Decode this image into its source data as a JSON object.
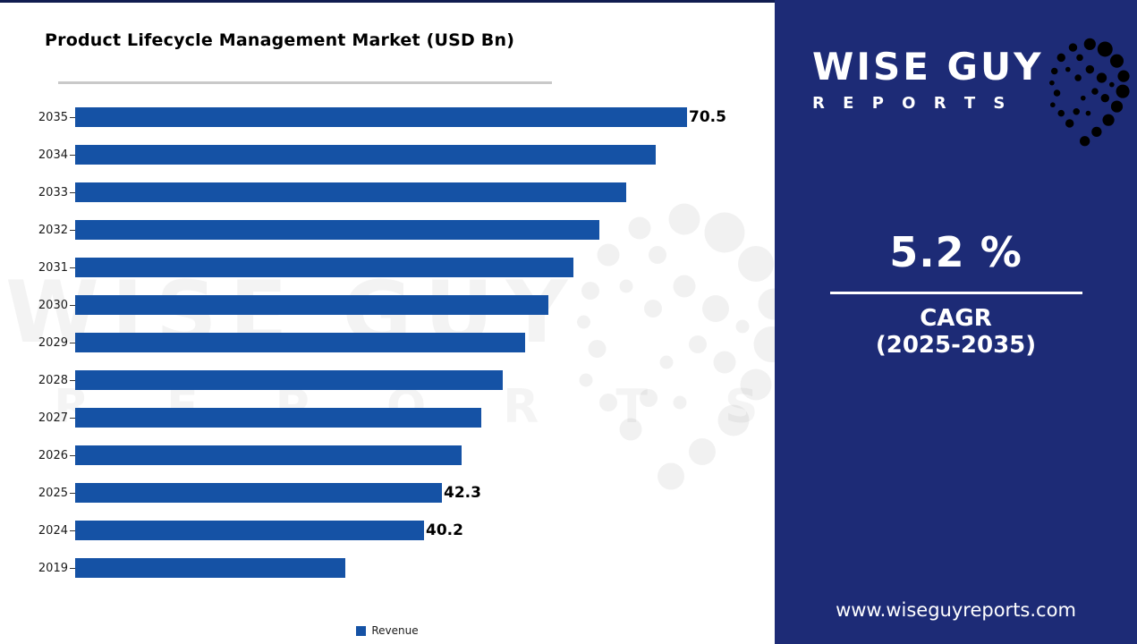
{
  "title": "Product Lifecycle Management Market (USD Bn)",
  "legend": {
    "label": "Revenue"
  },
  "chart_data": {
    "type": "bar",
    "orientation": "horizontal",
    "title": "Product Lifecycle Management Market (USD Bn)",
    "series_name": "Revenue",
    "categories": [
      "2035",
      "2034",
      "2033",
      "2032",
      "2031",
      "2030",
      "2029",
      "2028",
      "2027",
      "2026",
      "2025",
      "2024",
      "2019"
    ],
    "values": [
      70.5,
      66.9,
      63.5,
      60.4,
      57.4,
      54.5,
      51.8,
      49.3,
      46.8,
      44.5,
      42.3,
      40.2,
      31.1
    ],
    "value_labels": {
      "2035": "70.5",
      "2025": "42.3",
      "2024": "40.2"
    },
    "bar_color": "#1552a5",
    "legend_position": "bottom",
    "grid": false
  },
  "watermark": {
    "line1": "WISE GUY",
    "line2": "R E P O R T S"
  },
  "panel": {
    "logo_line1": "WISE GUY",
    "logo_line2": "R E P O R T S",
    "cagr_value": "5.2 %",
    "cagr_label": "CAGR",
    "cagr_period": "(2025-2035)",
    "website": "www.wiseguyreports.com",
    "background": "#1d2b76"
  }
}
